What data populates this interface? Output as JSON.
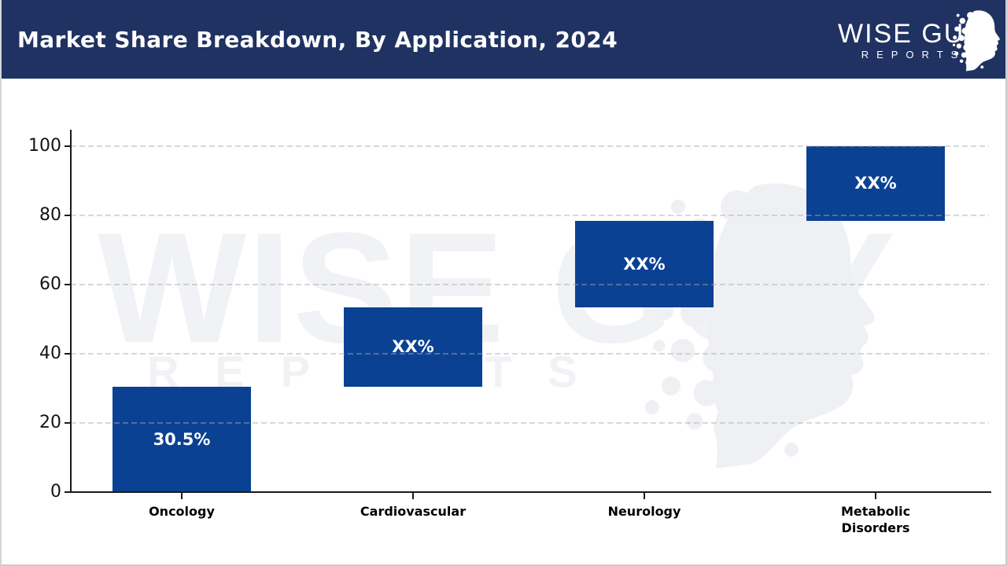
{
  "header": {
    "title": "Market Share Breakdown, By Application, 2024",
    "background_color": "#203262",
    "brand": {
      "line1": "WISE GUY",
      "line2": "REPORTS",
      "icon": "dotted-head-profile-icon",
      "text_color": "#ffffff"
    }
  },
  "watermark": {
    "line1": "WISE GUY",
    "line2": "REPORTS",
    "icon": "dotted-head-profile-icon",
    "color": "#f1f2f5"
  },
  "chart_data": {
    "type": "bar",
    "variant": "waterfall",
    "title": "Market Share Breakdown, By Application, 2024",
    "categories": [
      "Oncology",
      "Cardiovascular",
      "Neurology",
      "Metabolic\nDisorders"
    ],
    "segments": [
      {
        "category": "Oncology",
        "start": 0,
        "end": 30.5,
        "label": "30.5%"
      },
      {
        "category": "Cardiovascular",
        "start": 30.5,
        "end": 53.5,
        "label": "XX%"
      },
      {
        "category": "Neurology",
        "start": 53.5,
        "end": 78.5,
        "label": "XX%"
      },
      {
        "category": "Metabolic\nDisorders",
        "start": 78.5,
        "end": 100,
        "label": "XX%"
      }
    ],
    "values": [
      30.5,
      23,
      25,
      21.5
    ],
    "xlabel": "",
    "ylabel": "",
    "ylim": [
      0,
      100
    ],
    "yticks": [
      0,
      20,
      40,
      60,
      80,
      100
    ],
    "grid": "horizontal-dashed",
    "legend": "none",
    "bar_color": "#0b4192",
    "bar_label_color": "#ffffff",
    "axis_color": "#1a1a1a"
  }
}
